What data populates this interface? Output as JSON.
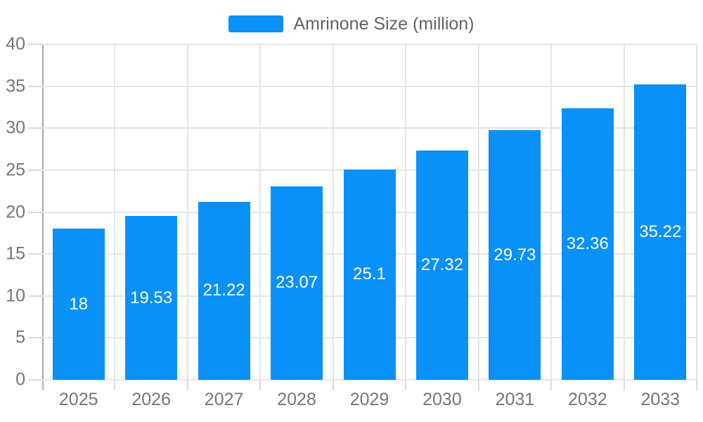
{
  "chart_data": {
    "type": "bar",
    "title": "",
    "legend": {
      "label": "Amrinone Size (million)",
      "position": "top-center"
    },
    "categories": [
      "2025",
      "2026",
      "2027",
      "2028",
      "2029",
      "2030",
      "2031",
      "2032",
      "2033"
    ],
    "series": [
      {
        "name": "Amrinone Size (million)",
        "values": [
          18,
          19.53,
          21.22,
          23.07,
          25.1,
          27.32,
          29.73,
          32.36,
          35.22
        ]
      }
    ],
    "value_labels": [
      "18",
      "19.53",
      "21.22",
      "23.07",
      "25.1",
      "27.32",
      "29.73",
      "32.36",
      "35.22"
    ],
    "xlabel": "",
    "ylabel": "",
    "ylim": [
      0,
      40
    ],
    "ytick_step": 5,
    "ytick_labels": [
      "0",
      "5",
      "10",
      "15",
      "20",
      "25",
      "30",
      "35",
      "40"
    ],
    "grid": true,
    "colors": {
      "bar": "#0990f9",
      "grid": "#e4e4e4",
      "tick": "#dadada",
      "axis": "#a3a3a3",
      "axis_text": "#757575",
      "legend_text": "#5f6368",
      "value_label_text": "#ffffff",
      "background": "#ffffff"
    }
  }
}
